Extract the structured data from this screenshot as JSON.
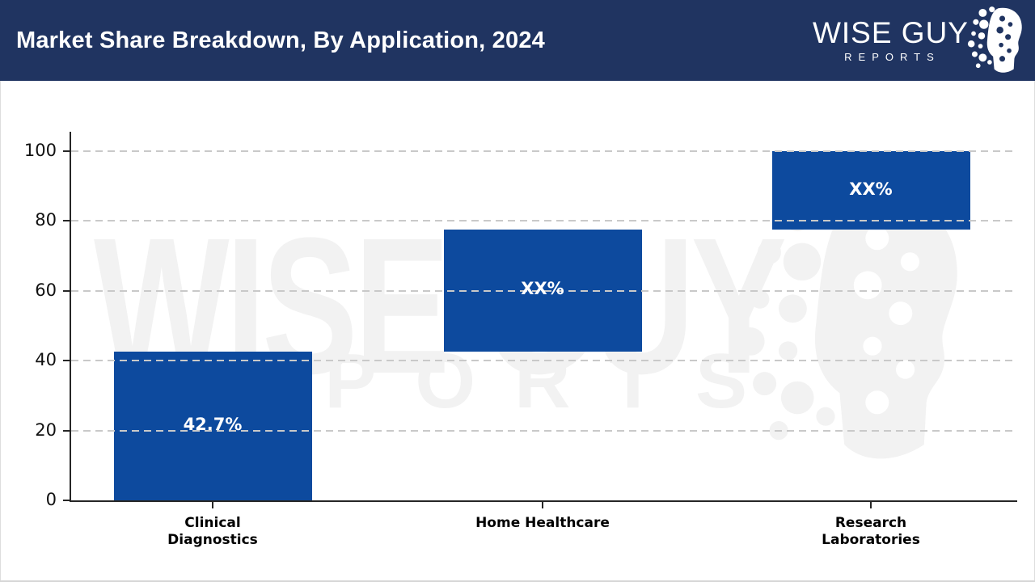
{
  "header": {
    "bg_color": "#203461",
    "title": "Market Share Breakdown, By Application, 2024",
    "logo": {
      "wordmark": "WISE GUY",
      "subtext": "REPORTS"
    }
  },
  "watermark": {
    "wordmark": "WISE GUY",
    "subtext": "REPORTS"
  },
  "chart_data": {
    "type": "bar",
    "variant": "waterfall",
    "title": "Market Share Breakdown, By Application, 2024",
    "categories": [
      [
        "Clinical",
        "Diagnostics"
      ],
      [
        "Home Healthcare"
      ],
      [
        "Research",
        "Laboratories"
      ]
    ],
    "segments": [
      {
        "name": "Clinical Diagnostics",
        "start": 0,
        "end": 42.7,
        "label": "42.7%"
      },
      {
        "name": "Home Healthcare",
        "start": 42.7,
        "end": 77.5,
        "label": "XX%"
      },
      {
        "name": "Research Laboratories",
        "start": 77.5,
        "end": 100,
        "label": "XX%"
      }
    ],
    "yticks": [
      0,
      20,
      40,
      60,
      80,
      100
    ],
    "ylim": [
      0,
      105
    ],
    "xlabel": "",
    "ylabel": "",
    "grid": "horizontal-dashed-over-bars",
    "legend": "none",
    "bar_color": "#0d4a9e",
    "bar_label_color": "#ffffff",
    "axis_color": "#262626",
    "grid_color": "#c9c9c9",
    "tick_label_color": "#111111"
  }
}
